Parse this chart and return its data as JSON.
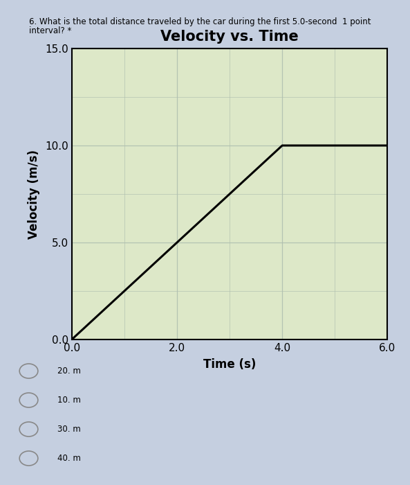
{
  "title": "Velocity vs. Time",
  "xlabel": "Time (s)",
  "ylabel": "Velocity (m/s)",
  "xlim": [
    0.0,
    6.0
  ],
  "ylim": [
    0.0,
    15.0
  ],
  "xticks": [
    0.0,
    2.0,
    4.0,
    6.0
  ],
  "yticks": [
    0.0,
    5.0,
    10.0,
    15.0
  ],
  "line_x": [
    0.0,
    4.0,
    6.0
  ],
  "line_y": [
    0.0,
    10.0,
    10.0
  ],
  "line_color": "#000000",
  "line_width": 2.2,
  "grid_color": "#b0bfb0",
  "grid_alpha": 0.9,
  "plot_bg_color": "#dde8c8",
  "fig_bg_color": "#c5cfe0",
  "title_fontsize": 15,
  "title_fontweight": "bold",
  "label_fontsize": 12,
  "label_fontweight": "bold",
  "tick_fontsize": 11,
  "question_text_line1": "6. What is the total distance traveled by the car during the first 5.0-second  1 point",
  "question_text_line2": "interval? *",
  "question_fontsize": 8.5,
  "radio_options": [
    "20. m",
    "10. m",
    "30. m",
    "40. m"
  ],
  "radio_fontsize": 8.5,
  "radio_circle_color": "#888888"
}
